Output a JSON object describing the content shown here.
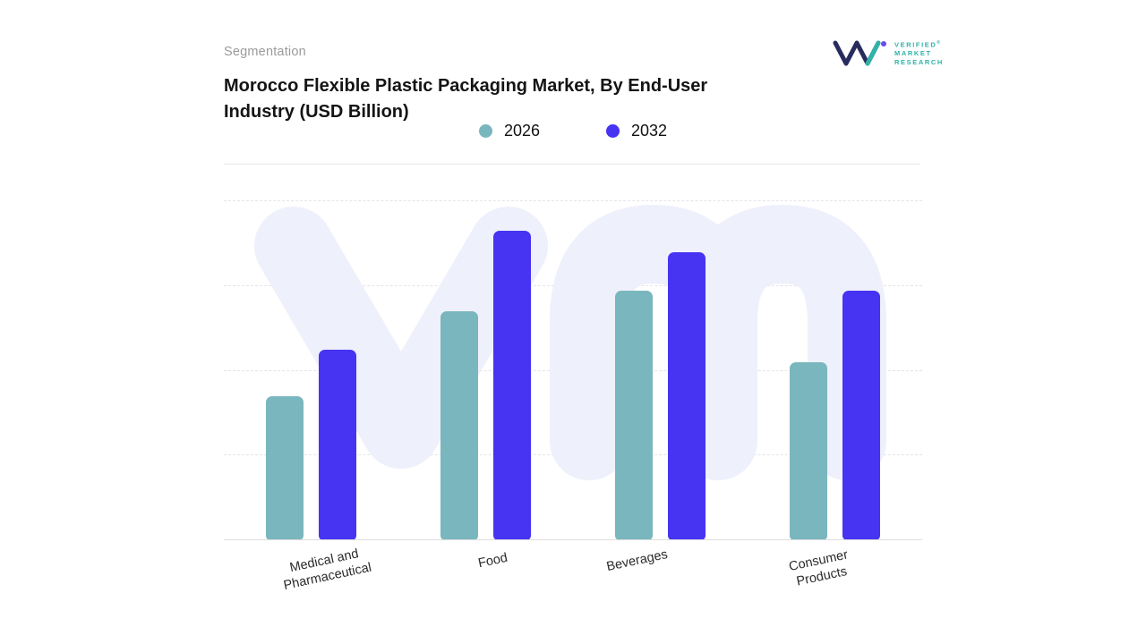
{
  "header": {
    "eyebrow": "Segmentation",
    "title": "Morocco Flexible Plastic Packaging Market, By End-User Industry (USD Billion)",
    "logo": {
      "line1": "VERIFIED",
      "line2": "MARKET",
      "line3": "RESEARCH",
      "registered": "®"
    }
  },
  "chart_data": {
    "type": "bar",
    "title": "Morocco Flexible Plastic Packaging Market, By End-User Industry (USD Billion)",
    "categories": [
      "Medical and Pharmaceutical",
      "Food",
      "Beverages",
      "Consumer Products"
    ],
    "series": [
      {
        "name": "2026",
        "color": "#7ab6bd",
        "values": [
          1.7,
          2.7,
          2.95,
          2.1
        ]
      },
      {
        "name": "2032",
        "color": "#4733f2",
        "values": [
          2.25,
          3.65,
          3.4,
          2.95
        ]
      }
    ],
    "ylim": [
      0,
      4
    ],
    "xlabel": "",
    "ylabel": "",
    "grid": "horizontal-dashed",
    "legend_position": "top-center",
    "y_tick_labels_visible": false
  }
}
